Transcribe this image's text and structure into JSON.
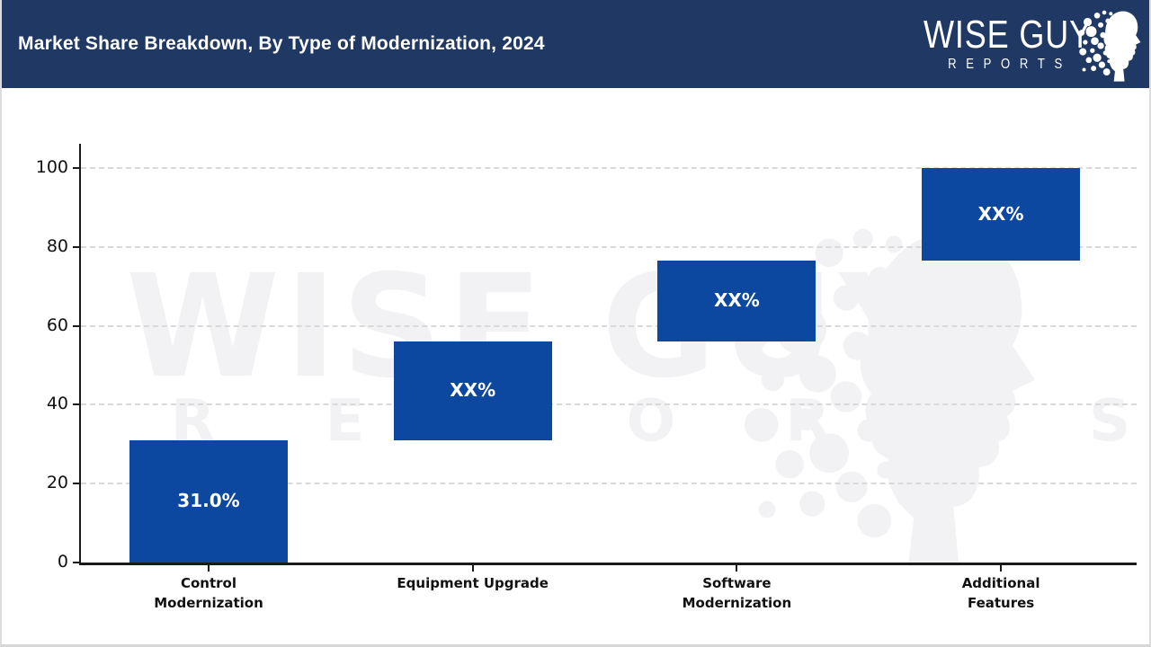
{
  "header": {
    "title": "Market Share Breakdown, By Type of Modernization, 2024",
    "bg_color": "#1F3864",
    "logo": {
      "line1": "WISE GUY",
      "line2": "REPORTS"
    }
  },
  "watermark": {
    "line1": "WISE GUY",
    "line2": "R E P O R T S"
  },
  "chart_data": {
    "type": "bar",
    "subtype": "waterfall",
    "title": "Market Share Breakdown, By Type of Modernization, 2024",
    "xlabel": "",
    "ylabel": "",
    "ylim": [
      0,
      108
    ],
    "yticks": [
      0,
      20,
      40,
      60,
      80,
      100
    ],
    "grid": true,
    "grid_style": "dashed",
    "legend": false,
    "bar_color": "#0C47A0",
    "categories": [
      "Control Modernization",
      "Equipment Upgrade",
      "Software Modernization",
      "Additional Features"
    ],
    "segments": [
      {
        "category_lines": [
          "Control",
          "Modernization"
        ],
        "start": 0,
        "end": 31,
        "value_label": "31.0%"
      },
      {
        "category_lines": [
          "Equipment Upgrade"
        ],
        "start": 31,
        "end": 56,
        "value_label": "XX%"
      },
      {
        "category_lines": [
          "Software",
          "Modernization"
        ],
        "start": 56,
        "end": 76.5,
        "value_label": "XX%"
      },
      {
        "category_lines": [
          "Additional",
          "Features"
        ],
        "start": 76.5,
        "end": 100,
        "value_label": "XX%"
      }
    ]
  }
}
